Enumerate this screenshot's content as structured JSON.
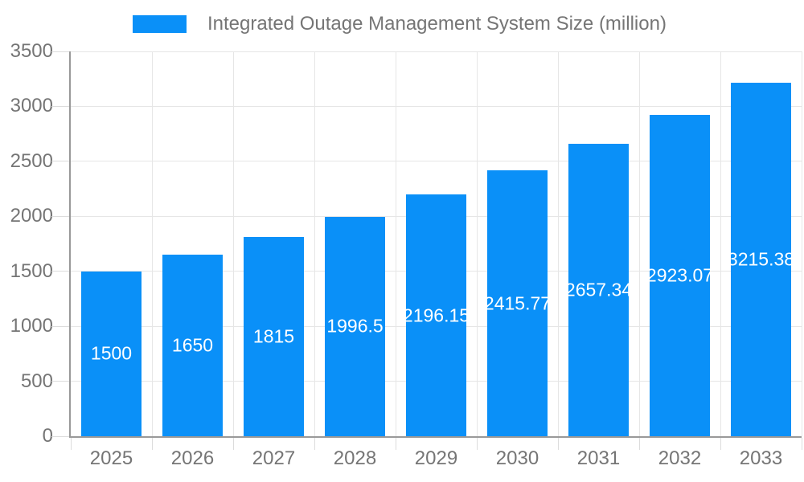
{
  "chart_data": {
    "type": "bar",
    "title": "Integrated Outage Management System Size (million)",
    "series_name": "Integrated Outage Management System Size (million)",
    "categories": [
      "2025",
      "2026",
      "2027",
      "2028",
      "2029",
      "2030",
      "2031",
      "2032",
      "2033"
    ],
    "values": [
      1500,
      1650,
      1815,
      1996.5,
      2196.15,
      2415.77,
      2657.34,
      2923.07,
      3215.38
    ],
    "value_labels": [
      "1500",
      "1650",
      "1815",
      "1996.5",
      "2196.15",
      "2415.77",
      "2657.34",
      "2923.07",
      "3215.38"
    ],
    "xlabel": "",
    "ylabel": "",
    "ylim": [
      0,
      3500
    ],
    "yticks": [
      0,
      500,
      1000,
      1500,
      2000,
      2500,
      3000,
      3500
    ],
    "grid": true,
    "legend_position": "top",
    "colors": {
      "bar": "#0a90f8",
      "grid": "#e6e6e6",
      "axis": "#999999",
      "tick": "#dcdcdc",
      "label_text": "#757575",
      "value_text": "#ffffff",
      "background": "#ffffff"
    }
  },
  "legend": {
    "label": "Integrated Outage Management System Size (million)"
  }
}
